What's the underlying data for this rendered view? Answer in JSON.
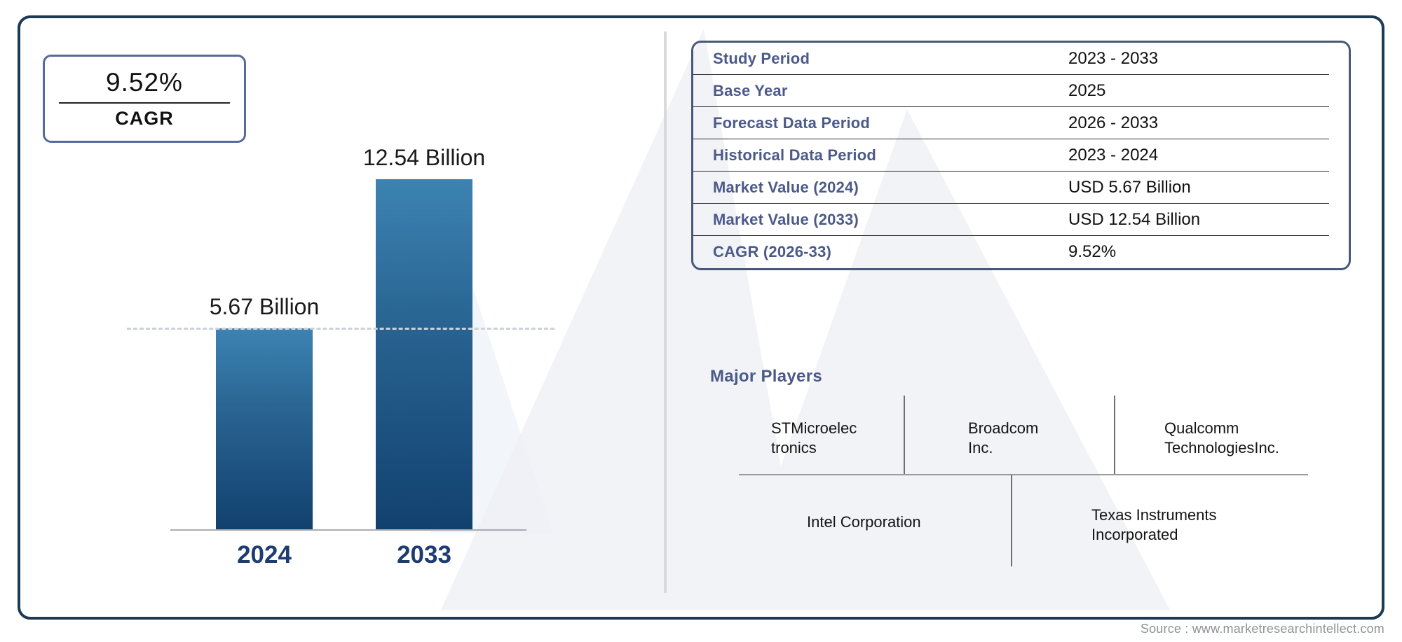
{
  "cagr_box": {
    "value": "9.52%",
    "label": "CAGR"
  },
  "chart_data": {
    "type": "bar",
    "categories": [
      "2024",
      "2033"
    ],
    "values": [
      5.67,
      12.54
    ],
    "unit": "USD Billion",
    "value_labels": [
      "5.67 Billion",
      "12.54 Billion"
    ],
    "title": "",
    "xlabel": "",
    "ylabel": "",
    "reference_line_at": 5.67,
    "grid": false,
    "legend": false,
    "bar_gradient_top": "#3c83b2",
    "bar_gradient_bottom": "#12416f"
  },
  "info_table": {
    "rows": [
      {
        "label": "Study Period",
        "value": "2023 - 2033"
      },
      {
        "label": "Base Year",
        "value": "2025"
      },
      {
        "label": "Forecast Data Period",
        "value": "2026 - 2033"
      },
      {
        "label": "Historical Data Period",
        "value": "2023 - 2024"
      },
      {
        "label": "Market Value (2024)",
        "value": "USD 5.67 Billion"
      },
      {
        "label": "Market Value (2033)",
        "value": "USD 12.54 Billion"
      },
      {
        "label": "CAGR (2026-33)",
        "value": "9.52%"
      }
    ]
  },
  "major_players": {
    "heading": "Major Players",
    "companies": [
      "STMicroelectronics",
      "Broadcom Inc.",
      "Qualcomm TechnologiesInc.",
      "Intel Corporation",
      "Texas Instruments Incorporated"
    ]
  },
  "source": "Source : www.marketresearchintellect.com",
  "colors": {
    "frame_border": "#1c3a52",
    "panel_border": "#4a5878",
    "cagr_box_border": "#566b9b",
    "table_label": "#4b5a8a",
    "axis_label": "#1e3c72",
    "bar_top": "#3c83b2",
    "bar_bottom": "#12416f",
    "divider": "#d9d9d9",
    "source_text": "#8e9298",
    "watermark": "#edf0f5"
  }
}
